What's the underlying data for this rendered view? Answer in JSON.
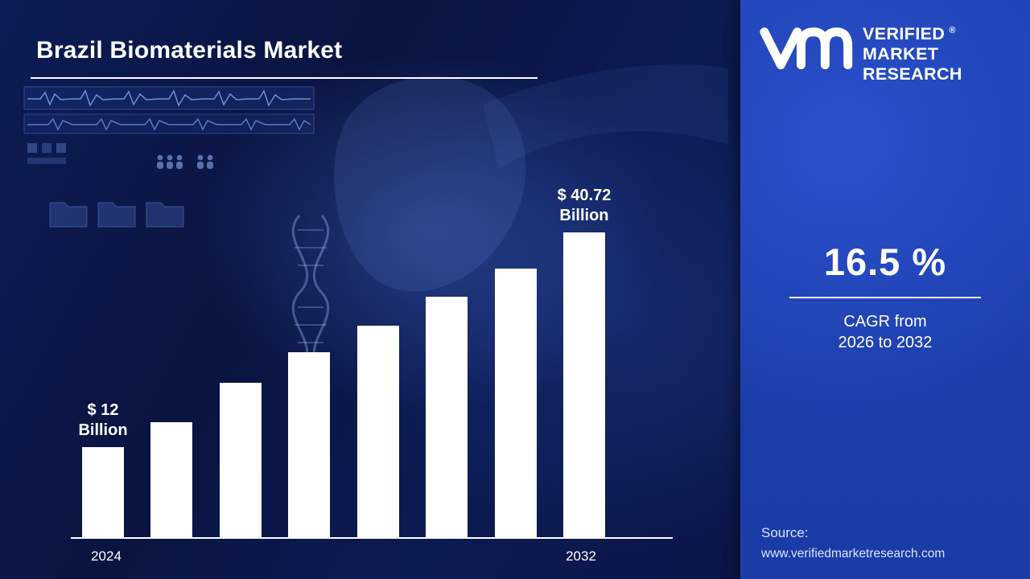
{
  "title": "Brazil Biomaterials Market",
  "logo": {
    "brand_line1": "VERIFIED",
    "brand_line2": "MARKET",
    "brand_line3": "RESEARCH",
    "registered_mark": "®"
  },
  "cagr": {
    "value": "16.5 %",
    "label_line1": "CAGR from",
    "label_line2": "2026  to 2032"
  },
  "source": {
    "label": "Source:",
    "url": "www.verifiedmarketresearch.com"
  },
  "chart_data": {
    "type": "bar",
    "title": "Brazil Biomaterials Market",
    "categories": [
      "2024",
      "",
      "",
      "",
      "",
      "",
      "",
      "2032"
    ],
    "values": [
      12,
      15.4,
      20.6,
      24.7,
      28.2,
      32.1,
      35.8,
      40.72
    ],
    "unit": "USD Billion",
    "first_bar_label": [
      "$ 12",
      "Billion"
    ],
    "last_bar_label": [
      "$ 40.72",
      "Billion"
    ],
    "x_ticks": [
      "2024",
      "2032"
    ],
    "ylim": [
      0,
      44
    ],
    "bar_color": "#ffffff",
    "grid": false,
    "legend": false
  },
  "colors": {
    "left_background": "#0a1440",
    "right_panel": "#1e41b2",
    "bar": "#ffffff",
    "text": "#ffffff",
    "source_text": "#d9e4ff"
  }
}
